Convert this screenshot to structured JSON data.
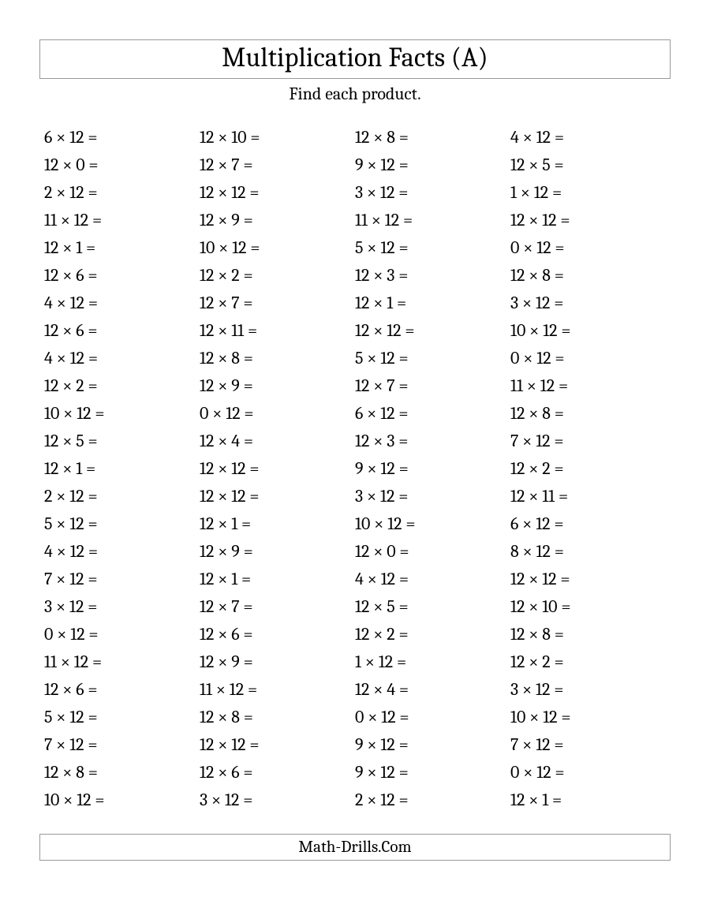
{
  "title": "Multiplication Facts (A)",
  "subtitle": "Find each product.",
  "footer": "Math-Drills.Com",
  "style": {
    "background_color": "#ffffff",
    "text_color": "#000000",
    "border_color": "#999999",
    "title_fontsize": 34,
    "subtitle_fontsize": 22,
    "problem_fontsize": 22,
    "footer_fontsize": 21,
    "font_family": "Cambria / serif",
    "columns": 4,
    "rows_per_column": 25,
    "multiply_symbol": "×",
    "equals_symbol": "="
  },
  "columns": [
    [
      {
        "a": 6,
        "b": 12
      },
      {
        "a": 12,
        "b": 0
      },
      {
        "a": 2,
        "b": 12
      },
      {
        "a": 11,
        "b": 12
      },
      {
        "a": 12,
        "b": 1
      },
      {
        "a": 12,
        "b": 6
      },
      {
        "a": 4,
        "b": 12
      },
      {
        "a": 12,
        "b": 6
      },
      {
        "a": 4,
        "b": 12
      },
      {
        "a": 12,
        "b": 2
      },
      {
        "a": 10,
        "b": 12
      },
      {
        "a": 12,
        "b": 5
      },
      {
        "a": 12,
        "b": 1
      },
      {
        "a": 2,
        "b": 12
      },
      {
        "a": 5,
        "b": 12
      },
      {
        "a": 4,
        "b": 12
      },
      {
        "a": 7,
        "b": 12
      },
      {
        "a": 3,
        "b": 12
      },
      {
        "a": 0,
        "b": 12
      },
      {
        "a": 11,
        "b": 12
      },
      {
        "a": 12,
        "b": 6
      },
      {
        "a": 5,
        "b": 12
      },
      {
        "a": 7,
        "b": 12
      },
      {
        "a": 12,
        "b": 8
      },
      {
        "a": 10,
        "b": 12
      }
    ],
    [
      {
        "a": 12,
        "b": 10
      },
      {
        "a": 12,
        "b": 7
      },
      {
        "a": 12,
        "b": 12
      },
      {
        "a": 12,
        "b": 9
      },
      {
        "a": 10,
        "b": 12
      },
      {
        "a": 12,
        "b": 2
      },
      {
        "a": 12,
        "b": 7
      },
      {
        "a": 12,
        "b": 11
      },
      {
        "a": 12,
        "b": 8
      },
      {
        "a": 12,
        "b": 9
      },
      {
        "a": 0,
        "b": 12
      },
      {
        "a": 12,
        "b": 4
      },
      {
        "a": 12,
        "b": 12
      },
      {
        "a": 12,
        "b": 12
      },
      {
        "a": 12,
        "b": 1
      },
      {
        "a": 12,
        "b": 9
      },
      {
        "a": 12,
        "b": 1
      },
      {
        "a": 12,
        "b": 7
      },
      {
        "a": 12,
        "b": 6
      },
      {
        "a": 12,
        "b": 9
      },
      {
        "a": 11,
        "b": 12
      },
      {
        "a": 12,
        "b": 8
      },
      {
        "a": 12,
        "b": 12
      },
      {
        "a": 12,
        "b": 6
      },
      {
        "a": 3,
        "b": 12
      }
    ],
    [
      {
        "a": 12,
        "b": 8
      },
      {
        "a": 9,
        "b": 12
      },
      {
        "a": 3,
        "b": 12
      },
      {
        "a": 11,
        "b": 12
      },
      {
        "a": 5,
        "b": 12
      },
      {
        "a": 12,
        "b": 3
      },
      {
        "a": 12,
        "b": 1
      },
      {
        "a": 12,
        "b": 12
      },
      {
        "a": 5,
        "b": 12
      },
      {
        "a": 12,
        "b": 7
      },
      {
        "a": 6,
        "b": 12
      },
      {
        "a": 12,
        "b": 3
      },
      {
        "a": 9,
        "b": 12
      },
      {
        "a": 3,
        "b": 12
      },
      {
        "a": 10,
        "b": 12
      },
      {
        "a": 12,
        "b": 0
      },
      {
        "a": 4,
        "b": 12
      },
      {
        "a": 12,
        "b": 5
      },
      {
        "a": 12,
        "b": 2
      },
      {
        "a": 1,
        "b": 12
      },
      {
        "a": 12,
        "b": 4
      },
      {
        "a": 0,
        "b": 12
      },
      {
        "a": 9,
        "b": 12
      },
      {
        "a": 9,
        "b": 12
      },
      {
        "a": 2,
        "b": 12
      }
    ],
    [
      {
        "a": 4,
        "b": 12
      },
      {
        "a": 12,
        "b": 5
      },
      {
        "a": 1,
        "b": 12
      },
      {
        "a": 12,
        "b": 12
      },
      {
        "a": 0,
        "b": 12
      },
      {
        "a": 12,
        "b": 8
      },
      {
        "a": 3,
        "b": 12
      },
      {
        "a": 10,
        "b": 12
      },
      {
        "a": 0,
        "b": 12
      },
      {
        "a": 11,
        "b": 12
      },
      {
        "a": 12,
        "b": 8
      },
      {
        "a": 7,
        "b": 12
      },
      {
        "a": 12,
        "b": 2
      },
      {
        "a": 12,
        "b": 11
      },
      {
        "a": 6,
        "b": 12
      },
      {
        "a": 8,
        "b": 12
      },
      {
        "a": 12,
        "b": 12
      },
      {
        "a": 12,
        "b": 10
      },
      {
        "a": 12,
        "b": 8
      },
      {
        "a": 12,
        "b": 2
      },
      {
        "a": 3,
        "b": 12
      },
      {
        "a": 10,
        "b": 12
      },
      {
        "a": 7,
        "b": 12
      },
      {
        "a": 0,
        "b": 12
      },
      {
        "a": 12,
        "b": 1
      }
    ]
  ]
}
